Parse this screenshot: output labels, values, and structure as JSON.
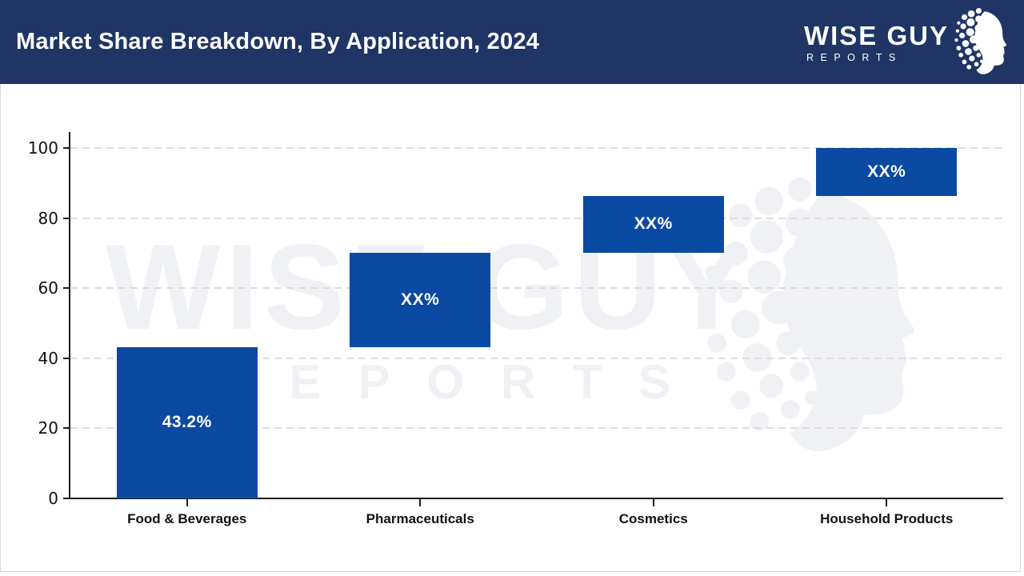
{
  "header": {
    "title": "Market Share Breakdown, By Application, 2024",
    "logo": {
      "line1": "WISE GUY",
      "line2": "REPORTS"
    }
  },
  "watermark": {
    "line1": "WISE GUY",
    "line2": "REPORTS"
  },
  "chart_data": {
    "type": "bar",
    "subtype": "waterfall",
    "title": "Market Share Breakdown, By Application, 2024",
    "xlabel": "",
    "ylabel": "",
    "categories": [
      "Food & Beverages",
      "Pharmaceuticals",
      "Cosmetics",
      "Household Products"
    ],
    "segments": [
      {
        "category": "Food & Beverages",
        "start": 0,
        "end": 43.2,
        "label": "43.2%"
      },
      {
        "category": "Pharmaceuticals",
        "start": 43.2,
        "end": 70.2,
        "label": "XX%"
      },
      {
        "category": "Cosmetics",
        "start": 70.2,
        "end": 86.3,
        "label": "XX%"
      },
      {
        "category": "Household Products",
        "start": 86.3,
        "end": 100,
        "label": "XX%"
      }
    ],
    "y_ticks": [
      0,
      20,
      40,
      60,
      80,
      100
    ],
    "ylim": [
      0,
      105
    ],
    "grid": "horizontal-dashed",
    "legend": "none",
    "bar_color": "#0b4aa2",
    "bar_label_color": "#ffffff"
  },
  "colors": {
    "header_bg": "#1f3565",
    "bar": "#0b4aa2",
    "gridline": "#dcdcdc",
    "axis": "#1c1c1c",
    "watermark": "#f0f1f4",
    "card_border": "#d8d8d8"
  }
}
